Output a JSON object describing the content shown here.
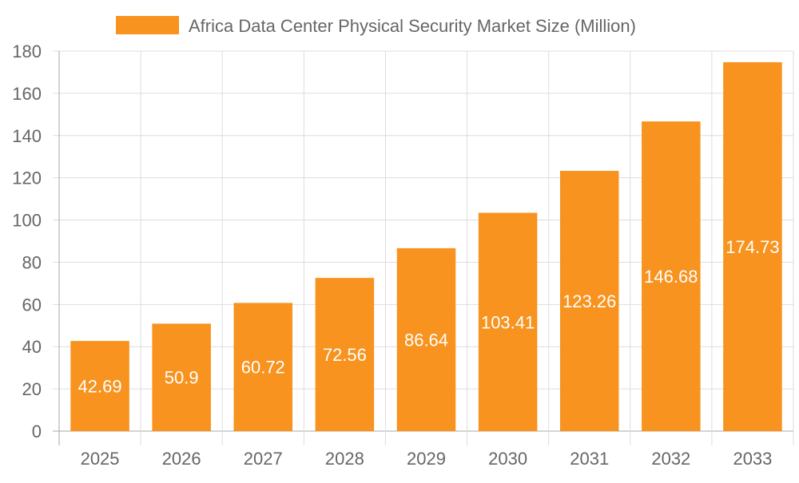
{
  "chart_data": {
    "type": "bar",
    "title": "",
    "legend": [
      {
        "name": "Africa Data Center Physical Security Market Size (Million)",
        "color": "#F7931E"
      }
    ],
    "legend_placement": "top",
    "categories": [
      "2025",
      "2026",
      "2027",
      "2028",
      "2029",
      "2030",
      "2031",
      "2032",
      "2033"
    ],
    "series": [
      {
        "name": "Africa Data Center Physical Security Market Size (Million)",
        "values": [
          42.69,
          50.9,
          60.72,
          72.56,
          86.64,
          103.41,
          123.26,
          146.68,
          174.73
        ]
      }
    ],
    "data_labels": [
      "42.69",
      "50.9",
      "60.72",
      "72.56",
      "86.64",
      "103.41",
      "123.26",
      "146.68",
      "174.73"
    ],
    "ylim": [
      0,
      180
    ],
    "yticks": [
      0,
      20,
      40,
      60,
      80,
      100,
      120,
      140,
      160,
      180
    ],
    "xlabel": "",
    "ylabel": "",
    "grid": true,
    "colors": {
      "bar": "#F7931E",
      "grid": "#dddddd",
      "axis_text": "#666666",
      "label": "#ffffff"
    }
  }
}
